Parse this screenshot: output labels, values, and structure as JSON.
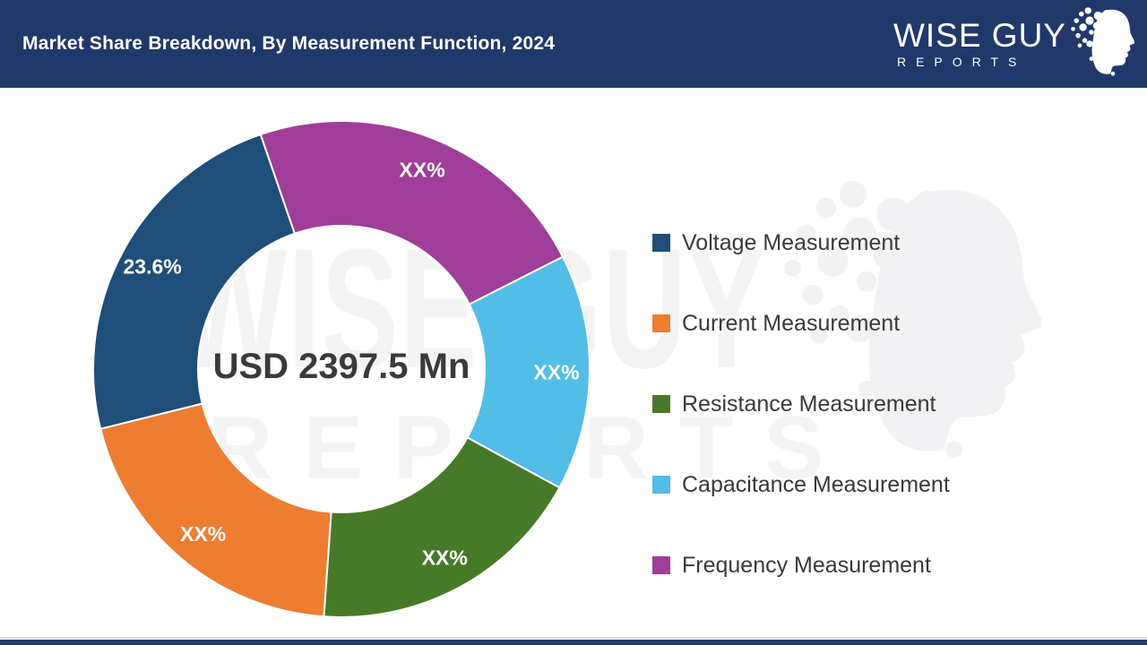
{
  "header": {
    "title": "Market Share Breakdown, By Measurement Function, 2024"
  },
  "logo": {
    "line1": "WISE GUY",
    "line2": "REPORTS"
  },
  "watermark": {
    "line1": "WISE GUY",
    "line2": "REPORTS"
  },
  "chart_data": {
    "type": "pie",
    "subtype": "donut",
    "title": "Market Share Breakdown, By Measurement Function, 2024",
    "center_label": "USD 2397.5 Mn",
    "start_angle_deg": 109,
    "legend_position": "right",
    "slices": [
      {
        "label": "Voltage Measurement",
        "display_value": "23.6%",
        "value_pct": 23.6,
        "color": "#1F4E79"
      },
      {
        "label": "Current Measurement",
        "display_value": "XX%",
        "value_pct": 20.0,
        "color": "#ED7D31"
      },
      {
        "label": "Resistance Measurement",
        "display_value": "XX%",
        "value_pct": 18.2,
        "color": "#477A28"
      },
      {
        "label": "Capacitance Measurement",
        "display_value": "XX%",
        "value_pct": 15.4,
        "color": "#52BDE6"
      },
      {
        "label": "Frequency Measurement",
        "display_value": "XX%",
        "value_pct": 22.8,
        "color": "#9F3E98"
      }
    ]
  }
}
